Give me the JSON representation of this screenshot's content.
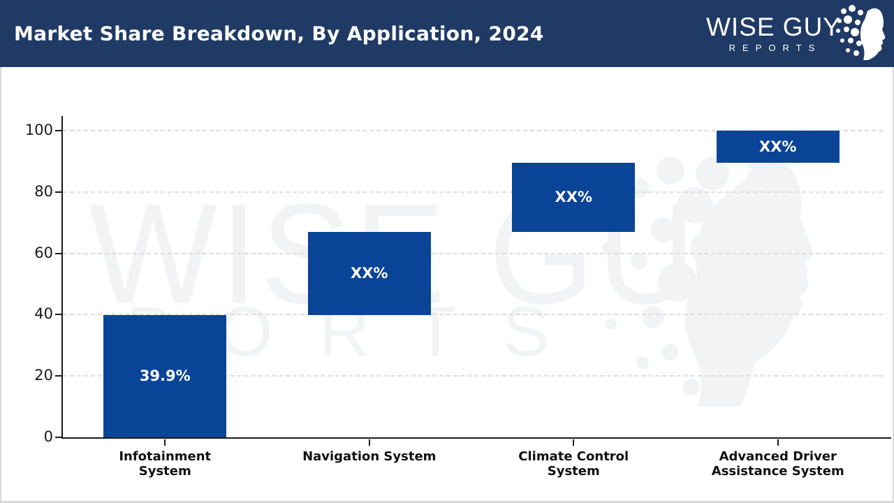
{
  "header": {
    "title": "Market Share Breakdown, By Application, 2024",
    "logo": {
      "line1": "WISE GUY",
      "line2": "REPORTS"
    }
  },
  "watermark": {
    "line1": "WISE GU",
    "line2": "PORTS"
  },
  "chart_data": {
    "type": "bar",
    "variant": "waterfall",
    "title": "Market Share Breakdown, By Application, 2024",
    "categories": [
      "Infotainment System",
      "Navigation System",
      "Climate Control System",
      "Advanced Driver Assistance System"
    ],
    "category_label_lines": [
      [
        "Infotainment",
        "System"
      ],
      [
        "Navigation System"
      ],
      [
        "Climate Control",
        "System"
      ],
      [
        "Advanced Driver",
        "Assistance System"
      ]
    ],
    "segments": [
      {
        "category": "Infotainment System",
        "start": 0,
        "end": 39.9,
        "label": "39.9%"
      },
      {
        "category": "Navigation System",
        "start": 39.9,
        "end": 67,
        "label": "XX%"
      },
      {
        "category": "Climate Control System",
        "start": 67,
        "end": 89.5,
        "label": "XX%"
      },
      {
        "category": "Advanced Driver Assistance System",
        "start": 89.5,
        "end": 100,
        "label": "XX%"
      }
    ],
    "ylim": [
      0,
      100
    ],
    "yticks": [
      0,
      20,
      40,
      60,
      80,
      100
    ],
    "xlabel": "",
    "ylabel": "",
    "grid": "horizontal-dashed",
    "legend": "none"
  },
  "colors": {
    "header_bg": "#203A66",
    "bar": "#0A4496",
    "grid": "#dcdcdc",
    "axis": "#1a1a1a",
    "label_text": "#111111",
    "bar_label_text": "#ffffff",
    "frame": "#d9d9d9",
    "watermark": "#f2f3f5"
  }
}
